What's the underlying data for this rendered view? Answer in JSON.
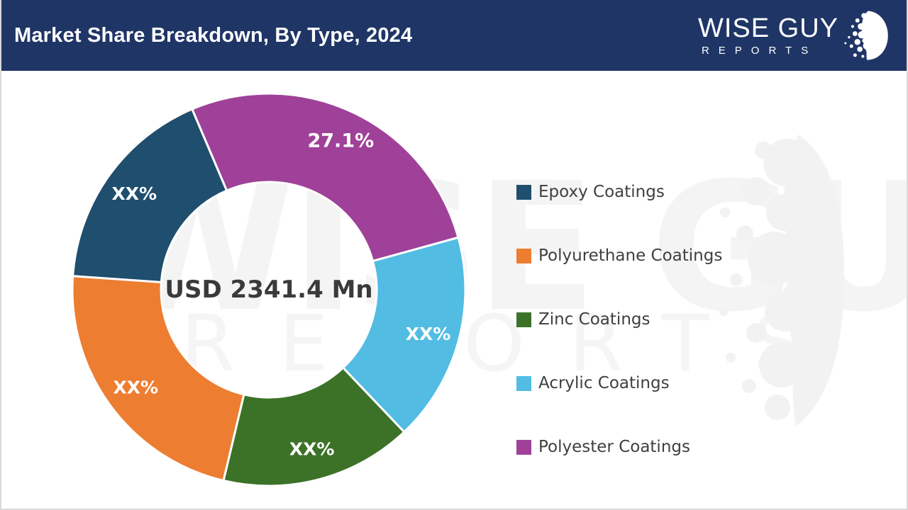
{
  "header": {
    "title": "Market Share Breakdown, By Type, 2024",
    "background_color": "#1F3566",
    "logo": {
      "wordmark": "WISE GUY",
      "subtitle": "REPORTS"
    }
  },
  "watermark": {
    "line1": "WISE GUY",
    "line2": "REPORTS"
  },
  "chart_data": {
    "type": "pie",
    "subtype": "donut",
    "title": "Market Share Breakdown, By Type, 2024",
    "center_label": "USD 2341.4 Mn",
    "units": "percent market share",
    "start_angle_deg": -23,
    "direction": "clockwise",
    "donut_hole_ratio": 0.55,
    "legend_position": "right",
    "segments": [
      {
        "name": "Polyester Coatings",
        "display_label": "27.1%",
        "share_pct": 27.1,
        "color": "#9F4199"
      },
      {
        "name": "Acrylic Coatings",
        "display_label": "XX%",
        "share_pct": 17.2,
        "color": "#52BCE3"
      },
      {
        "name": "Zinc Coatings",
        "display_label": "XX%",
        "share_pct": 15.8,
        "color": "#3C7228"
      },
      {
        "name": "Polyurethane Coatings",
        "display_label": "XX%",
        "share_pct": 22.4,
        "color": "#ED7D31"
      },
      {
        "name": "Epoxy Coatings",
        "display_label": "XX%",
        "share_pct": 17.5,
        "color": "#1F4E6E"
      }
    ],
    "legend": [
      {
        "label": "Epoxy Coatings",
        "color": "#1F4E6E"
      },
      {
        "label": "Polyurethane Coatings",
        "color": "#ED7D31"
      },
      {
        "label": "Zinc Coatings",
        "color": "#3C7228"
      },
      {
        "label": "Acrylic Coatings",
        "color": "#52BCE3"
      },
      {
        "label": "Polyester Coatings",
        "color": "#9F4199"
      }
    ]
  }
}
